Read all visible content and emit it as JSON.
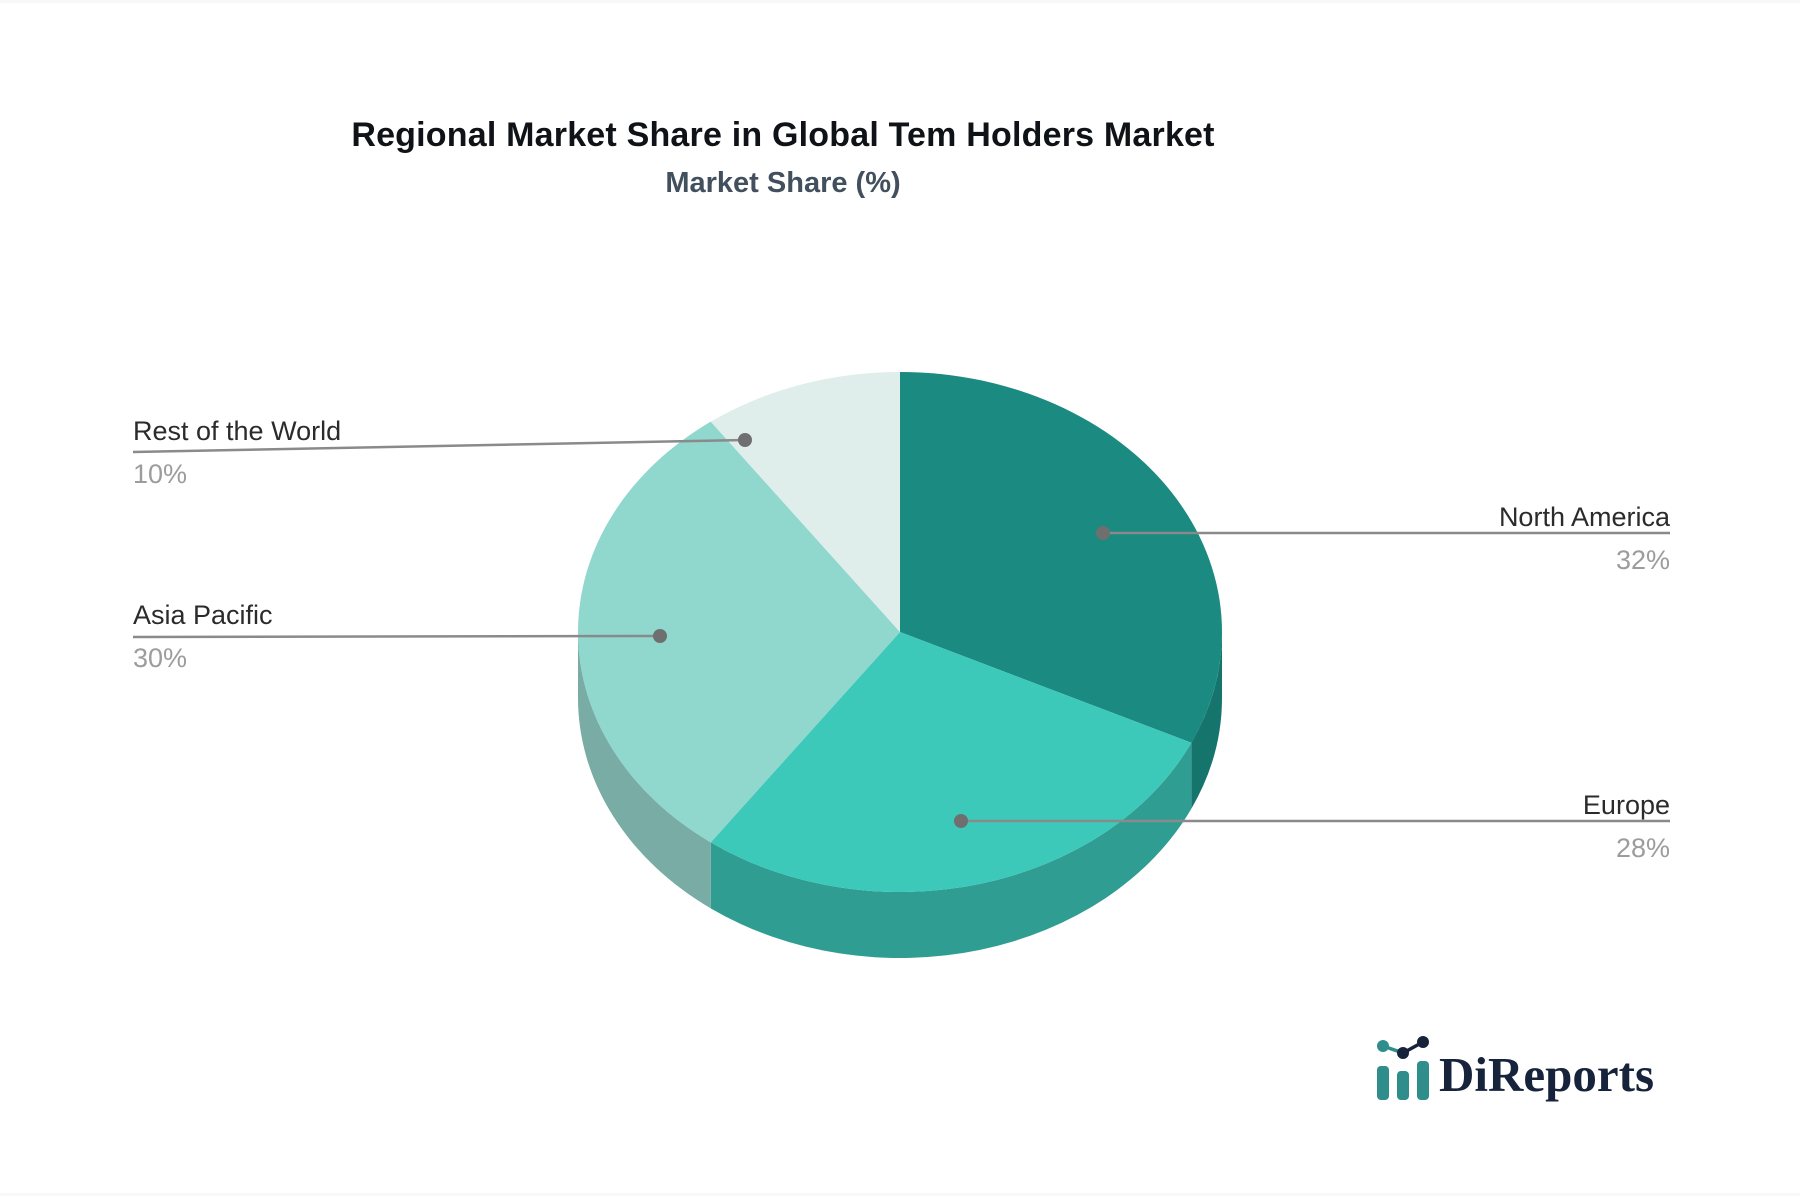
{
  "header": {
    "title": "Regional Market Share in Global Tem Holders Market",
    "subtitle": "Market Share (%)"
  },
  "logo": {
    "text": "DiReports"
  },
  "chart_data": {
    "type": "pie",
    "title": "Regional Market Share in Global Tem Holders Market",
    "subtitle": "Market Share (%)",
    "unit": "%",
    "style": "3d",
    "direction": "clockwise",
    "start_angle_deg": 0,
    "total": 100,
    "legend": "none",
    "callout_line_color": "#8a8a8a",
    "callout_dot_color": "#6f6f6f",
    "slices": [
      {
        "label": "North America",
        "value": 32,
        "display": "32%",
        "color": "#1b8a80",
        "side_color": "#15756c",
        "callout_side": "right"
      },
      {
        "label": "Europe",
        "value": 28,
        "display": "28%",
        "color": "#3cc9b9",
        "side_color": "#2f9d92",
        "callout_side": "right"
      },
      {
        "label": "Asia Pacific",
        "value": 30,
        "display": "30%",
        "color": "#90d7ce",
        "side_color": "#78aca5",
        "callout_side": "left"
      },
      {
        "label": "Rest of the World",
        "value": 10,
        "display": "10%",
        "color": "#dfedeb",
        "side_color": "#c9ddda",
        "callout_side": "left"
      }
    ]
  }
}
